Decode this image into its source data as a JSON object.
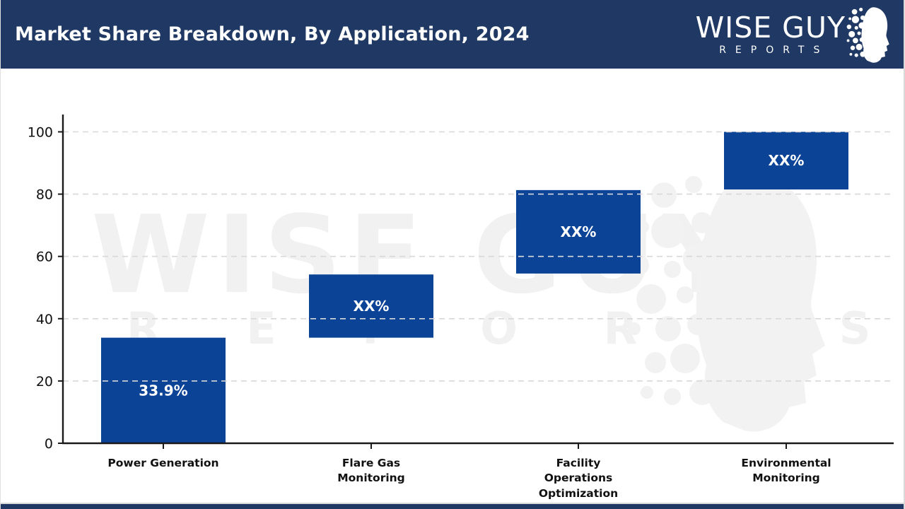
{
  "header": {
    "title": "Market Share Breakdown, By Application, 2024",
    "bg_color": "#1f3864",
    "brand": {
      "line1": "WISE GUY",
      "line2": "REPORTS"
    }
  },
  "watermark": {
    "line1": "WISE GUY",
    "line2": "REPORTS"
  },
  "chart_data": {
    "type": "bar",
    "subtype": "waterfall",
    "title": "Market Share Breakdown, By Application, 2024",
    "categories": [
      "Power Generation",
      "Flare Gas Monitoring",
      "Facility Operations Optimization",
      "Environmental Monitoring"
    ],
    "segments": [
      {
        "label": "Power Generation",
        "lines": [
          "Power Generation"
        ],
        "start": 0,
        "end": 33.9,
        "value_label": "33.9%"
      },
      {
        "label": "Flare Gas Monitoring",
        "lines": [
          "Flare Gas",
          "Monitoring"
        ],
        "start": 33.9,
        "end": 54.2,
        "value_label": "XX%"
      },
      {
        "label": "Facility Operations Optimization",
        "lines": [
          "Facility",
          "Operations",
          "Optimization"
        ],
        "start": 54.5,
        "end": 81.3,
        "value_label": "XX%"
      },
      {
        "label": "Environmental Monitoring",
        "lines": [
          "Environmental",
          "Monitoring"
        ],
        "start": 81.5,
        "end": 100,
        "value_label": "XX%"
      }
    ],
    "yticks": [
      0,
      20,
      40,
      60,
      80,
      100
    ],
    "ylim": [
      0,
      105
    ],
    "xlabel": "",
    "ylabel": "",
    "grid": "horizontal-dashed",
    "legend": "none",
    "bar_color": "#0b4397",
    "bar_label_color": "#ffffff",
    "grid_color": "#d8d8d8",
    "axis_color": "#1a1a1a"
  }
}
